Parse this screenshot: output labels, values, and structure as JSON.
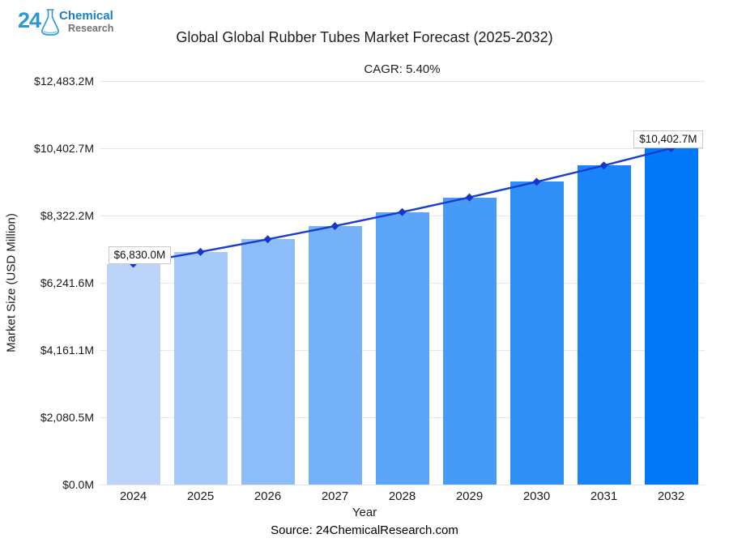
{
  "logo": {
    "number": "24",
    "name_top": "Chemical",
    "name_bottom": "Research",
    "color_number": "#2d97d3",
    "color_top": "#1d7fc2",
    "color_bottom": "#6d7377"
  },
  "source": "Source: 24ChemicalResearch.com",
  "chart_data": {
    "type": "bar",
    "overlay": "line",
    "title": "Global Global Rubber Tubes Market Forecast (2025-2032)",
    "subtitle": "CAGR: 5.40%",
    "xlabel": "Year",
    "ylabel": "Market Size (USD Million)",
    "categories": [
      "2024",
      "2025",
      "2026",
      "2027",
      "2028",
      "2029",
      "2030",
      "2031",
      "2032"
    ],
    "values": [
      6830.0,
      7198.8,
      7587.6,
      7997.3,
      8429.2,
      8884.3,
      9364.1,
      9869.7,
      10402.7
    ],
    "ylim": [
      0,
      12483.2
    ],
    "yticks": [
      {
        "label": "$0.0M",
        "value": 0
      },
      {
        "label": "$2,080.5M",
        "value": 2080.5
      },
      {
        "label": "$4,161.1M",
        "value": 4161.1
      },
      {
        "label": "$6,241.6M",
        "value": 6241.6
      },
      {
        "label": "$8,322.2M",
        "value": 8322.2
      },
      {
        "label": "$10,402.7M",
        "value": 10402.7
      },
      {
        "label": "$12,483.2M",
        "value": 12483.2
      }
    ],
    "annotations": [
      {
        "index": 0,
        "text": "$6,830.0M",
        "side": "left"
      },
      {
        "index": 8,
        "text": "$10,402.7M",
        "side": "right"
      }
    ],
    "bar_colors": [
      "#bcd4f8",
      "#a5c9f8",
      "#8dbdf8",
      "#74b1f8",
      "#5ca5f8",
      "#479bf8",
      "#2f8ff7",
      "#1884f7",
      "#0078f7"
    ],
    "line_color": "#1a3cd3",
    "marker_color": "#1535cc",
    "grid_color": "#e7e7e7",
    "legend": "none",
    "grid": "on"
  }
}
